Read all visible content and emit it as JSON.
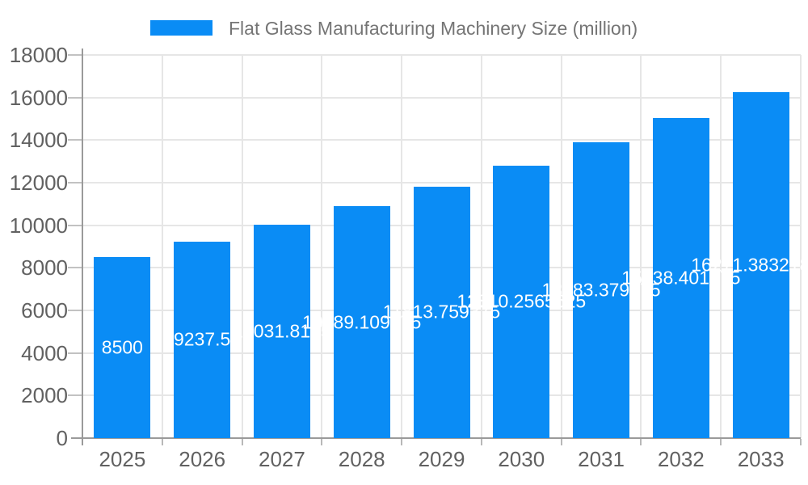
{
  "chart_data": {
    "type": "bar",
    "title": "Flat Glass Manufacturing Machinery Size (million)",
    "legend": {
      "position": "top",
      "label": "Flat Glass Manufacturing Machinery Size (million)"
    },
    "categories": [
      "2025",
      "2026",
      "2027",
      "2028",
      "2029",
      "2030",
      "2031",
      "2032",
      "2033"
    ],
    "values": [
      8500,
      9237.5,
      10031.8125,
      10889.109375,
      11813.759375,
      12810.2565625,
      13883.379375,
      15038.401875,
      16271.38321875
    ],
    "value_labels": [
      "8500",
      "9237.5",
      "10031.8125",
      "10889.109375",
      "11813.759375",
      "12810.2565625",
      "13883.379375",
      "15038.401875",
      "16271.38321875"
    ],
    "xlabel": "",
    "ylabel": "",
    "ylim": [
      0,
      18000
    ],
    "yticks": [
      0,
      2000,
      4000,
      6000,
      8000,
      10000,
      12000,
      14000,
      16000,
      18000
    ],
    "grid": true,
    "colors": {
      "bar": "#0a8cf5",
      "grid": "#e6e6e6",
      "axis": "#9a9a9a",
      "tick": "#c2c2c2",
      "axis_label_text": "#616161",
      "legend_text": "#757575",
      "value_label_text": "#ffffff",
      "background": "#ffffff"
    }
  }
}
